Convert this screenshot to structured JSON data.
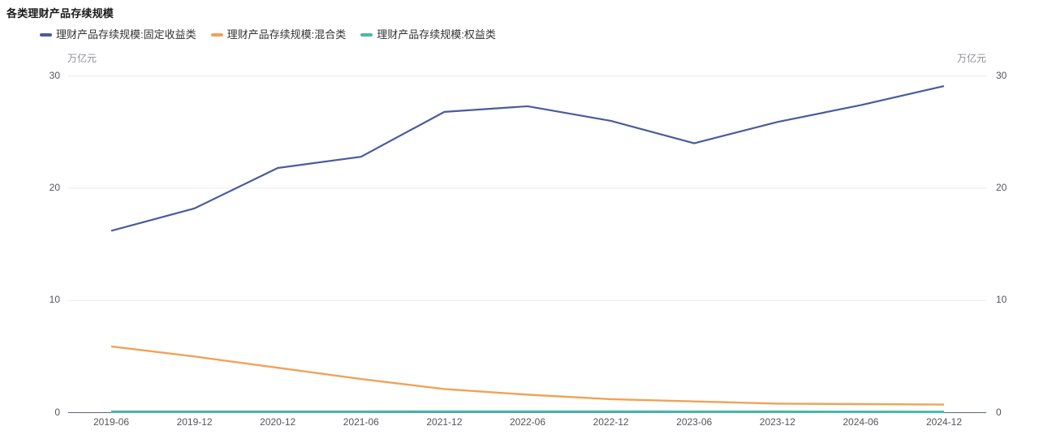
{
  "title": "各类理财产品存续规模",
  "y_axis": {
    "unit_left": "万亿元",
    "unit_right": "万亿元"
  },
  "chart_data": {
    "type": "line",
    "title": "各类理财产品存续规模",
    "xlabel": "",
    "ylabel": "万亿元",
    "ylim": [
      0,
      30
    ],
    "yticks": [
      0,
      10,
      20,
      30
    ],
    "grid": true,
    "legend_position": "top-left",
    "categories": [
      "2019-06",
      "2019-12",
      "2020-12",
      "2021-06",
      "2021-12",
      "2022-06",
      "2022-12",
      "2023-06",
      "2023-12",
      "2024-06",
      "2024-12"
    ],
    "series": [
      {
        "name": "理财产品存续规模:固定收益类",
        "color": "#4a5b9c",
        "values": [
          16.2,
          18.2,
          21.8,
          22.8,
          26.8,
          27.3,
          26.0,
          24.0,
          25.9,
          27.4,
          29.1
        ]
      },
      {
        "name": "理财产品存续规模:混合类",
        "color": "#f0a257",
        "values": [
          5.9,
          5.0,
          4.0,
          3.0,
          2.1,
          1.6,
          1.2,
          1.0,
          0.8,
          0.76,
          0.72
        ]
      },
      {
        "name": "理财产品存续规模:权益类",
        "color": "#4cb6a9",
        "values": [
          0.08,
          0.08,
          0.08,
          0.08,
          0.09,
          0.09,
          0.09,
          0.08,
          0.08,
          0.07,
          0.06
        ]
      }
    ],
    "colors": {
      "grid": "#e9eaf3",
      "axis": "#5a6587",
      "tick_text": "#53555e",
      "unit_text": "#8f9097"
    }
  }
}
